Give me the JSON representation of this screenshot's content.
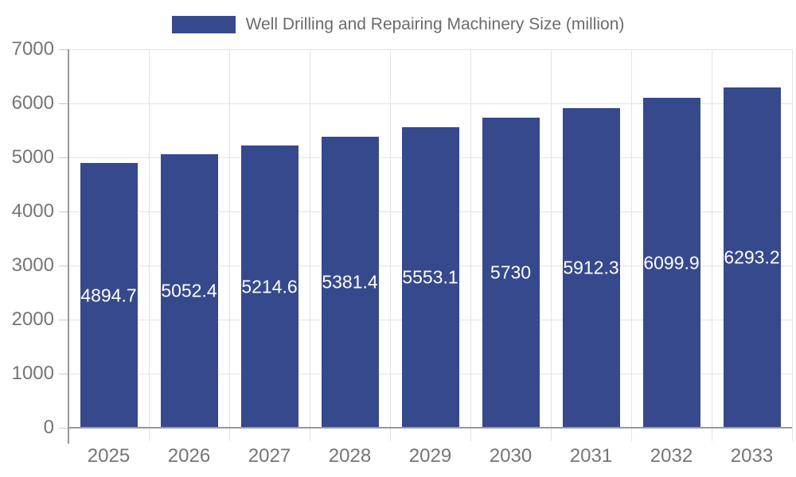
{
  "legend": {
    "label": "Well Drilling and Repairing Machinery Size (million)"
  },
  "colors": {
    "bar": "#36498C",
    "legend_text": "#6b6b6b",
    "axis_line": "#999999",
    "grid_line": "#e2e2e2",
    "tick_mark": "#c8c8c8",
    "tick_label": "#757575",
    "value_label": "#ffffff",
    "background": "#ffffff"
  },
  "chart_data": {
    "type": "bar",
    "title": "Well Drilling and Repairing Machinery Size (million)",
    "categories": [
      "2025",
      "2026",
      "2027",
      "2028",
      "2029",
      "2030",
      "2031",
      "2032",
      "2033"
    ],
    "values": [
      4894.7,
      5052.4,
      5214.6,
      5381.4,
      5553.1,
      5730,
      5912.3,
      6099.9,
      6293.2
    ],
    "xlabel": "",
    "ylabel": "",
    "ylim": [
      0,
      7000
    ],
    "yticks": [
      0,
      1000,
      2000,
      3000,
      4000,
      5000,
      6000,
      7000
    ],
    "grid": true,
    "legend_position": "top",
    "value_label_position": "inside-center"
  }
}
